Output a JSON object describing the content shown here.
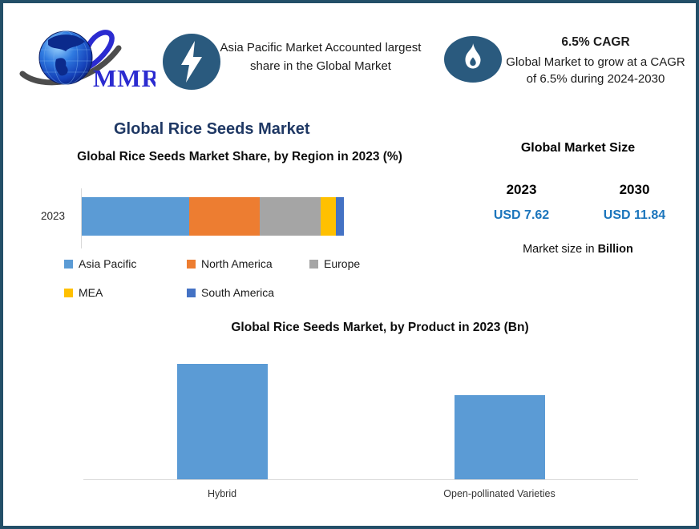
{
  "logo": {
    "text": "MMR"
  },
  "header": {
    "callout1": {
      "text": "Asia Pacific Market Accounted largest share in the Global Market"
    },
    "callout2": {
      "title": "6.5% CAGR",
      "text": "Global Market to grow at a CAGR of 6.5% during 2024-2030"
    }
  },
  "main_title": "Global Rice Seeds Market",
  "market_size": {
    "title": "Global Market Size",
    "years": [
      {
        "year": "2023",
        "value": "USD 7.62"
      },
      {
        "year": "2030",
        "value": "USD 11.84"
      }
    ],
    "note_prefix": "Market size in ",
    "note_bold": "Billion",
    "value_color": "#1B75BC"
  },
  "colors": {
    "border": "#234F68",
    "badge": "#2A5A7E",
    "title_navy": "#1F3864"
  },
  "chart_data": [
    {
      "type": "bar",
      "subtype": "stacked-horizontal",
      "title": "Global Rice Seeds Market Share, by Region in 2023 (%)",
      "categories": [
        "2023"
      ],
      "units": "%",
      "axis": "category-left",
      "legend_position": "bottom",
      "series": [
        {
          "name": "Asia Pacific",
          "color": "#5B9BD5",
          "values": [
            41
          ]
        },
        {
          "name": "North America",
          "color": "#ED7D31",
          "values": [
            27
          ]
        },
        {
          "name": "Europe",
          "color": "#A5A5A5",
          "values": [
            23
          ]
        },
        {
          "name": "MEA",
          "color": "#FFC000",
          "values": [
            6
          ]
        },
        {
          "name": "South America",
          "color": "#4472C4",
          "values": [
            3
          ]
        }
      ]
    },
    {
      "type": "bar",
      "title": "Global Rice Seeds Market, by Product in 2023 (Bn)",
      "categories": [
        "Hybrid",
        "Open-pollinated Varieties"
      ],
      "values": [
        4.4,
        3.2
      ],
      "bar_color": "#5B9BD5",
      "ylim": [
        0,
        5
      ],
      "units": "Bn",
      "grid": false
    }
  ]
}
